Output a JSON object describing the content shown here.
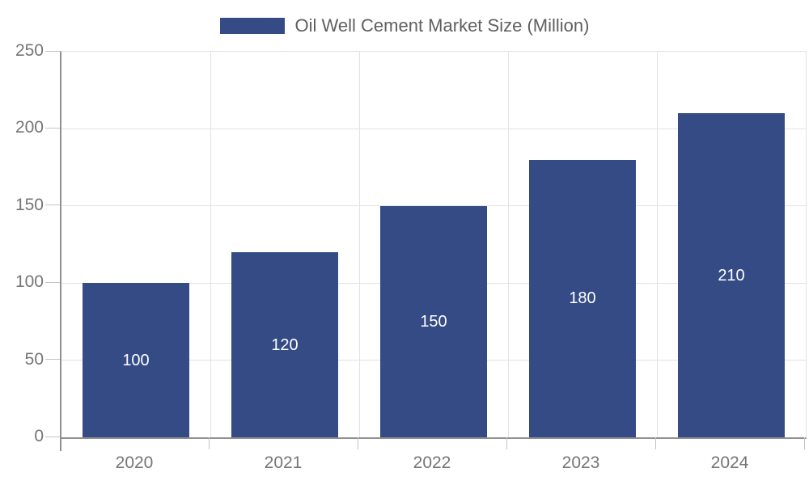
{
  "chart_data": {
    "type": "bar",
    "title": "Oil Well Cement Market Size (Million)",
    "legend": {
      "label": "Oil Well Cement Market Size (Million)",
      "position": "top"
    },
    "categories": [
      "2020",
      "2021",
      "2022",
      "2023",
      "2024"
    ],
    "values": [
      100,
      120,
      150,
      180,
      210
    ],
    "xlabel": "",
    "ylabel": "",
    "ylim": [
      0,
      250
    ],
    "yticks": [
      0,
      50,
      100,
      150,
      200,
      250
    ],
    "grid": true,
    "bar_labels_visible": true,
    "colors": {
      "bar": "#344b85",
      "bar_value_label": "#ffffff",
      "gridline": "#e3e3e3",
      "axis_line": "#909090",
      "tick_label": "#757575",
      "legend_text": "#5f5f5f",
      "background": "#ffffff"
    }
  }
}
